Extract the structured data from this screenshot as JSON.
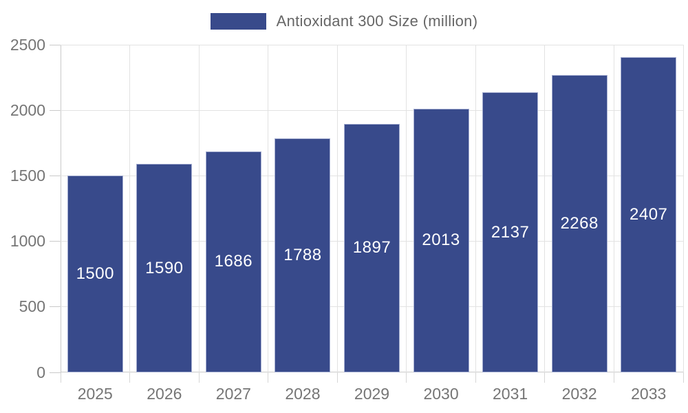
{
  "legend": {
    "label": "Antioxidant 300 Size (million)"
  },
  "colors": {
    "bar_fill": "#384A8B",
    "bar_border": "#B9C0DD",
    "gridline": "#E2E2E2",
    "axis_line": "#C9C9C9",
    "tick_label": "#757575",
    "value_label": "#FFFFFF",
    "legend_text": "#666666",
    "background": "#FFFFFF"
  },
  "chart_data": {
    "type": "bar",
    "title": "Antioxidant 300 Size (million)",
    "categories": [
      "2025",
      "2026",
      "2027",
      "2028",
      "2029",
      "2030",
      "2031",
      "2032",
      "2033"
    ],
    "values": [
      1500,
      1590,
      1686,
      1788,
      1897,
      2013,
      2137,
      2268,
      2407
    ],
    "series_name": "Antioxidant 300 Size (million)",
    "xlabel": "",
    "ylabel": "",
    "ylim": [
      0,
      2500
    ],
    "yticks": [
      0,
      500,
      1000,
      1500,
      2000,
      2500
    ],
    "grid": true,
    "value_labels": "inside-center",
    "legend_position": "top-center"
  }
}
